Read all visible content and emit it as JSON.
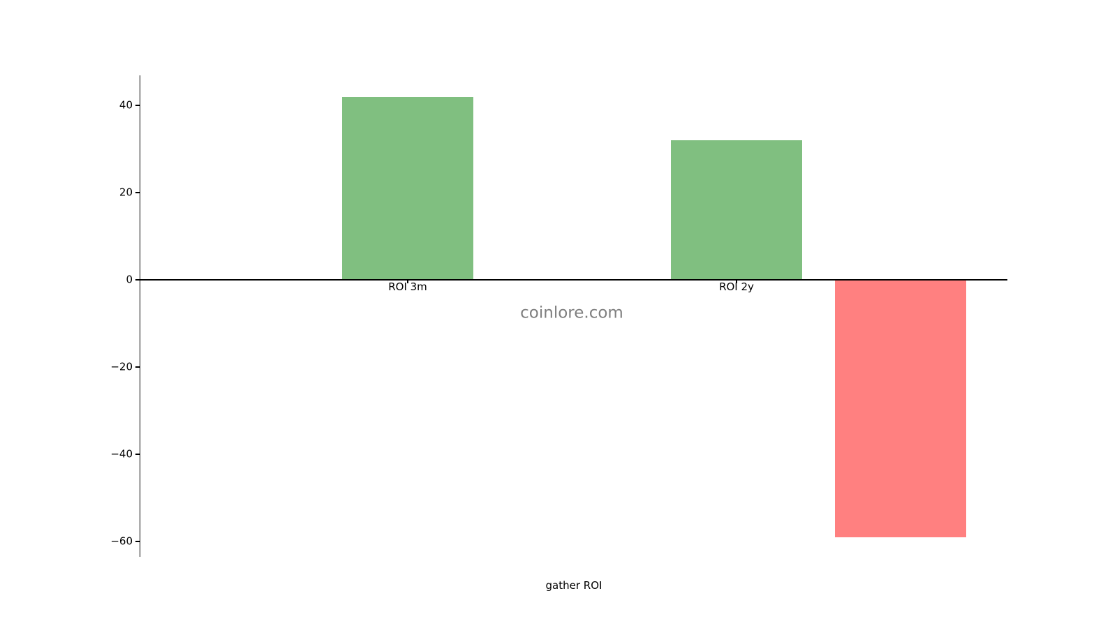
{
  "chart_data": {
    "type": "bar",
    "title": "",
    "xlabel": "gather ROI",
    "ylabel": "",
    "categories": [
      "ROI 3m",
      "ROI 2y",
      ""
    ],
    "values": [
      42,
      32,
      -59
    ],
    "bar_colors": [
      "#80bf80",
      "#80bf80",
      "#ff8080"
    ],
    "positive_color": "#80bf80",
    "negative_color": "#ff8080",
    "yticks": [
      40,
      20,
      0,
      -20,
      -40,
      -60
    ],
    "ytick_labels": [
      "40",
      "20",
      "0",
      "−20",
      "−40",
      "−60"
    ],
    "ylim": [
      -63.5,
      47
    ],
    "grid": false,
    "legend_position": "none",
    "watermark": "coinlore.com",
    "watermark_color": "#7f7f7f",
    "axis_color": "#000000",
    "background_color": "#ffffff"
  }
}
